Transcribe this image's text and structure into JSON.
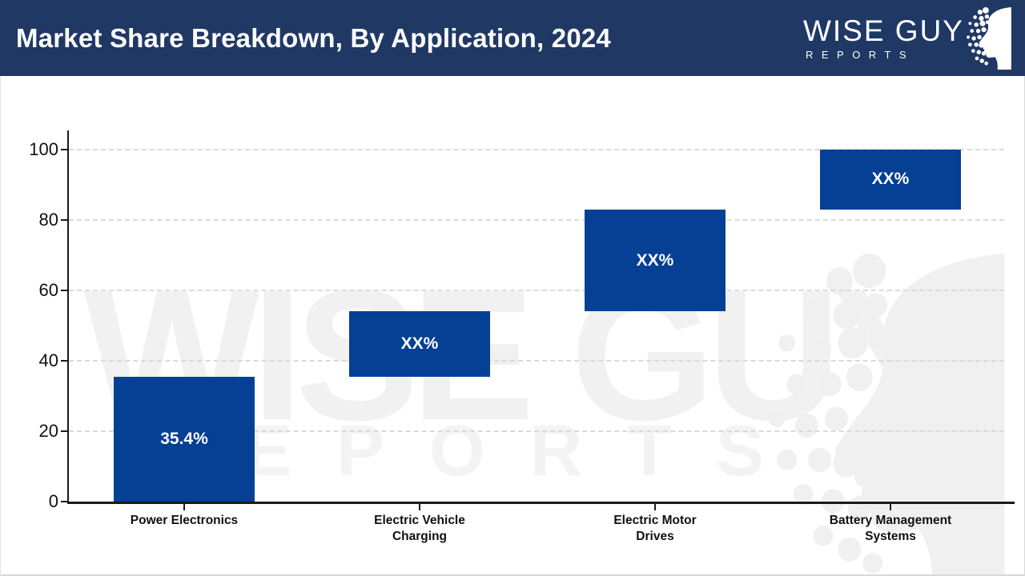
{
  "header": {
    "title": "Market Share Breakdown, By Application, 2024",
    "bg_color": "#203864",
    "logo": {
      "line1": "WISE GUY",
      "line2": "REPORTS"
    }
  },
  "watermark": {
    "line1": "WISE GUY",
    "line2": "REPORTS"
  },
  "chart_data": {
    "type": "bar",
    "subtype": "waterfall",
    "title": "Market Share Breakdown, By Application, 2024",
    "categories": [
      "Power Electronics",
      "Electric Vehicle Charging",
      "Electric Motor Drives",
      "Battery Management Systems"
    ],
    "segments": [
      {
        "category": "Power Electronics",
        "category_lines": [
          "Power Electronics"
        ],
        "start": 0,
        "end": 35.4,
        "label": "35.4%"
      },
      {
        "category": "Electric Vehicle Charging",
        "category_lines": [
          "Electric Vehicle",
          "Charging"
        ],
        "start": 35.4,
        "end": 54,
        "label": "XX%"
      },
      {
        "category": "Electric Motor Drives",
        "category_lines": [
          "Electric Motor",
          "Drives"
        ],
        "start": 54,
        "end": 83,
        "label": "XX%"
      },
      {
        "category": "Battery Management Systems",
        "category_lines": [
          "Battery Management",
          "Systems"
        ],
        "start": 83,
        "end": 100,
        "label": "XX%"
      }
    ],
    "ylim": [
      0,
      100
    ],
    "yticks": [
      0,
      20,
      40,
      60,
      80,
      100
    ],
    "xlabel": "",
    "ylabel": "",
    "grid": true,
    "legend": false,
    "bar_color": "#054094",
    "bar_label_color": "#ffffff",
    "gridline_color": "#dadada",
    "axis_color": "#1a1a1a"
  }
}
